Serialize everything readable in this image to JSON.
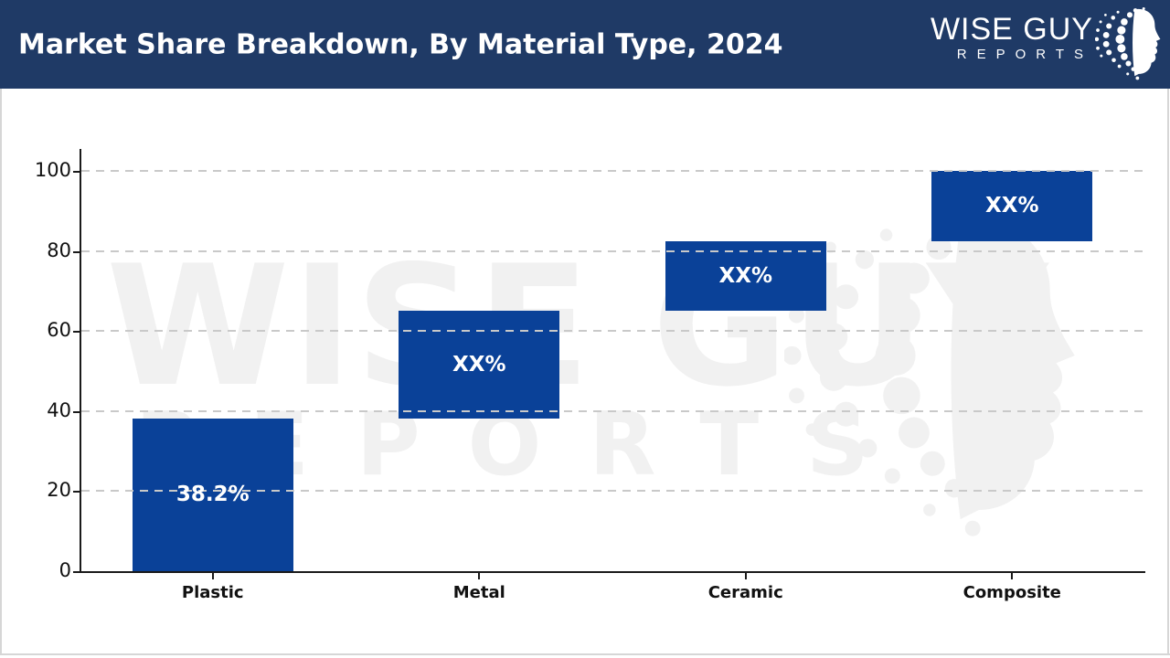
{
  "header": {
    "title": "Market Share Breakdown, By Material Type, 2024",
    "bg_color": "#1f3a66",
    "logo": {
      "line1": "WISE GUY",
      "line2": "REPORTS"
    }
  },
  "watermark": {
    "line1": "WISE GUY",
    "line2": "REPORTS",
    "color": "#f1f1f1"
  },
  "chart_data": {
    "type": "bar",
    "subtype": "waterfall-floating-bars",
    "title": "Market Share Breakdown, By Material Type, 2024",
    "categories": [
      "Plastic",
      "Metal",
      "Ceramic",
      "Composite"
    ],
    "segments": [
      {
        "category": "Plastic",
        "start": 0,
        "end": 38.2,
        "label": "38.2%"
      },
      {
        "category": "Metal",
        "start": 38.2,
        "end": 65.0,
        "label": "XX%"
      },
      {
        "category": "Ceramic",
        "start": 65.0,
        "end": 82.5,
        "label": "XX%"
      },
      {
        "category": "Composite",
        "start": 82.5,
        "end": 100,
        "label": "XX%"
      }
    ],
    "xlabel": "",
    "ylabel": "",
    "yticks": [
      0,
      20,
      40,
      60,
      80,
      100
    ],
    "ylim": [
      0,
      105
    ],
    "grid": "horizontal-dashed-over-bars",
    "legend": "none",
    "bar_color": "#0a4198",
    "grid_color": "#c9c9c9",
    "value_text_color": "#ffffff"
  }
}
